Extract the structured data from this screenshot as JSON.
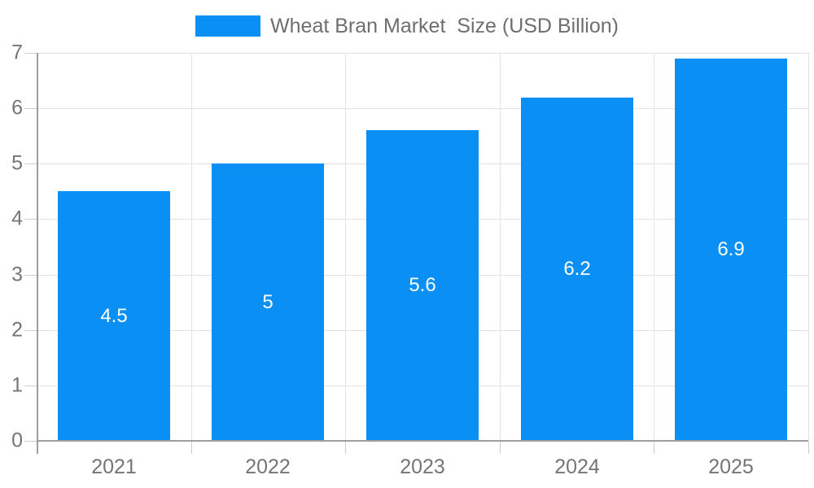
{
  "legend": {
    "series_label": "Wheat Bran Market  Size (USD Billion)"
  },
  "chart_data": {
    "type": "bar",
    "title": "Wheat Bran Market  Size (USD Billion)",
    "categories": [
      "2021",
      "2022",
      "2023",
      "2024",
      "2025"
    ],
    "values": [
      4.5,
      5,
      5.6,
      6.2,
      6.9
    ],
    "data_labels": [
      "4.5",
      "5",
      "5.6",
      "6.2",
      "6.9"
    ],
    "xlabel": "",
    "ylabel": "",
    "ylim": [
      0,
      7
    ],
    "yticks": [
      0,
      1,
      2,
      3,
      4,
      5,
      6,
      7
    ],
    "grid": true,
    "legend_position": "top",
    "colors": {
      "bar": "#0a90f5",
      "bar_value_label": "#ffffff",
      "axis_line": "#9e9e9e",
      "gridline": "#e3e3e3",
      "tick_mark": "#cccccc",
      "tick_label": "#757575",
      "legend_text": "#6e6e6e",
      "background": "#ffffff"
    }
  }
}
